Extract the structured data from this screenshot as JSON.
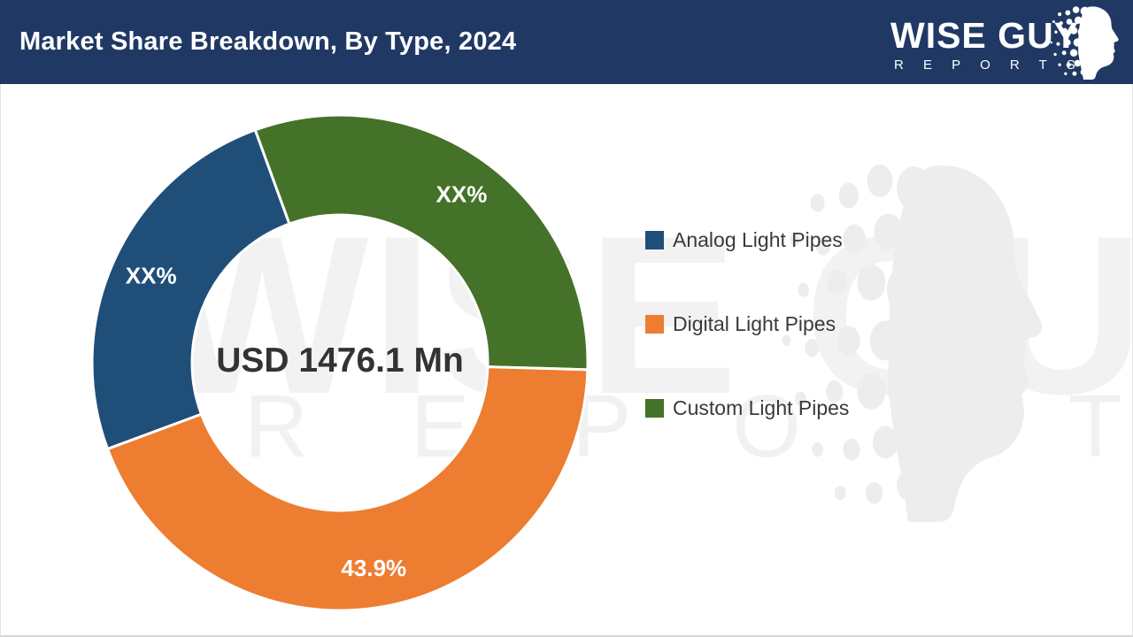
{
  "header": {
    "title": "Market Share Breakdown, By Type, 2024",
    "bg_color": "#203864",
    "logo": {
      "line1": "WISE GUY",
      "line2": "R E P O R T S"
    }
  },
  "watermark": {
    "line1": "WISE GUY",
    "line2": "R E P O R T S"
  },
  "chart_data": {
    "type": "pie",
    "subtype": "donut",
    "title": "Market Share Breakdown, By Type, 2024",
    "center_label": "USD 1476.1 Mn",
    "start_angle_deg": -20,
    "outer_radius": 280,
    "inner_radius": 167,
    "label_radius": 235,
    "slices": [
      {
        "name": "Custom Light Pipes",
        "value_pct": 31.0,
        "display_label": "XX%",
        "color": "#447228"
      },
      {
        "name": "Digital Light Pipes",
        "value_pct": 43.9,
        "display_label": "43.9%",
        "color": "#ED7D31"
      },
      {
        "name": "Analog Light Pipes",
        "value_pct": 25.1,
        "display_label": "XX%",
        "color": "#1F4E79"
      }
    ],
    "legend_position": "right",
    "legend": [
      {
        "label": "Analog Light Pipes",
        "color": "#1F4E79"
      },
      {
        "label": "Digital Light Pipes",
        "color": "#ED7D31"
      },
      {
        "label": "Custom Light Pipes",
        "color": "#447228"
      }
    ]
  }
}
